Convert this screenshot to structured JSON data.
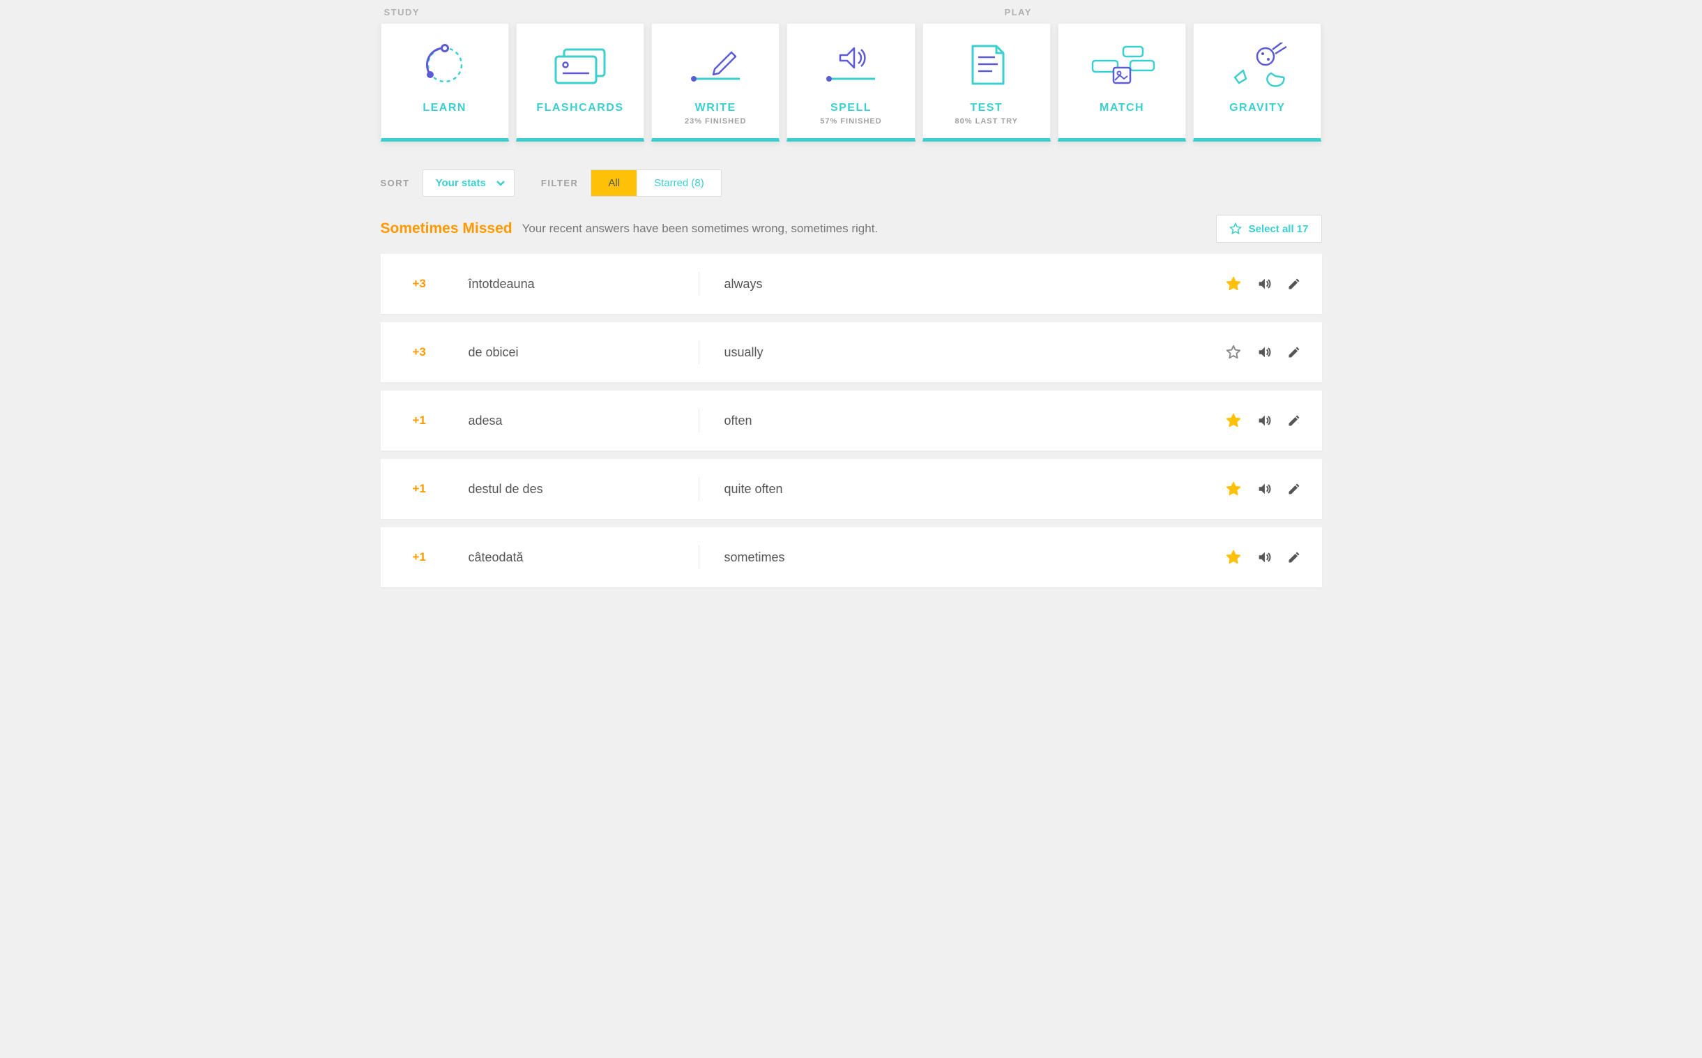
{
  "colors": {
    "accent": "#3ccfcf",
    "warn": "#ff9900",
    "highlight": "#ffc107",
    "icon_purple": "#5b5bd6",
    "text": "#555555",
    "muted": "#a0a0a0",
    "star_on": "#ffc107",
    "star_off": "#888888",
    "action_icon": "#555555"
  },
  "sections": {
    "study": "STUDY",
    "play": "PLAY"
  },
  "modes": [
    {
      "key": "learn",
      "title": "LEARN",
      "sub": ""
    },
    {
      "key": "flashcards",
      "title": "FLASHCARDS",
      "sub": ""
    },
    {
      "key": "write",
      "title": "WRITE",
      "sub": "23% FINISHED"
    },
    {
      "key": "spell",
      "title": "SPELL",
      "sub": "57% FINISHED"
    },
    {
      "key": "test",
      "title": "TEST",
      "sub": "80% LAST TRY"
    },
    {
      "key": "match",
      "title": "MATCH",
      "sub": ""
    },
    {
      "key": "gravity",
      "title": "GRAVITY",
      "sub": ""
    }
  ],
  "sort": {
    "label": "SORT",
    "value": "Your stats"
  },
  "filter": {
    "label": "FILTER",
    "all": "All",
    "starred": "Starred (8)"
  },
  "missed": {
    "title": "Sometimes Missed",
    "desc": "Your recent answers have been sometimes wrong, sometimes right."
  },
  "select_all": "Select all 17",
  "terms": [
    {
      "score": "+3",
      "word": "întotdeauna",
      "def": "always",
      "starred": true
    },
    {
      "score": "+3",
      "word": "de obicei",
      "def": "usually",
      "starred": false
    },
    {
      "score": "+1",
      "word": "adesa",
      "def": "often",
      "starred": true
    },
    {
      "score": "+1",
      "word": "destul de des",
      "def": "quite often",
      "starred": true
    },
    {
      "score": "+1",
      "word": "câteodată",
      "def": "sometimes",
      "starred": true
    }
  ]
}
